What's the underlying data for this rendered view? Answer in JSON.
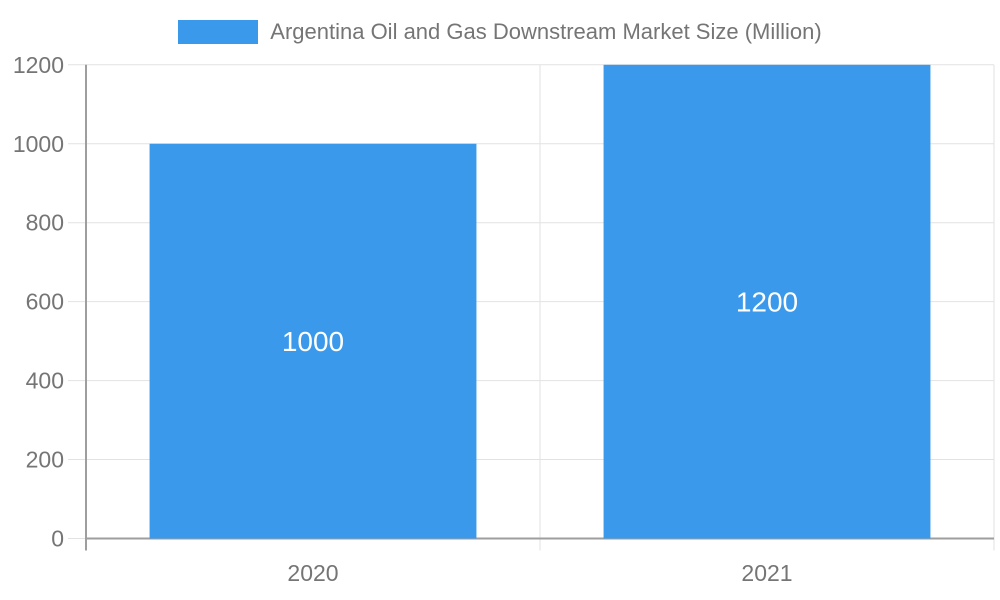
{
  "legend": {
    "label": "Argentina Oil and Gas Downstream Market Size (Million)"
  },
  "colors": {
    "bar": "#3b99ec",
    "axis_line": "#9e9e9e",
    "gridline": "#e2e2e2",
    "tick_label": "#757575",
    "bar_label": "#ffffff",
    "background": "#ffffff"
  },
  "chart_data": {
    "type": "bar",
    "title": "Argentina Oil and Gas Downstream Market Size (Million)",
    "series_name": "Argentina Oil and Gas Downstream Market Size (Million)",
    "categories": [
      "2020",
      "2021"
    ],
    "values": [
      1000,
      1200
    ],
    "data_labels": [
      "1000",
      "1200"
    ],
    "xlabel": "",
    "ylabel": "",
    "ylim": [
      0,
      1200
    ],
    "yticks": [
      0,
      200,
      400,
      600,
      800,
      1000,
      1200
    ],
    "ytick_labels": [
      "0",
      "200",
      "400",
      "600",
      "800",
      "1000",
      "1200"
    ],
    "grid": true,
    "legend_position": "top"
  }
}
